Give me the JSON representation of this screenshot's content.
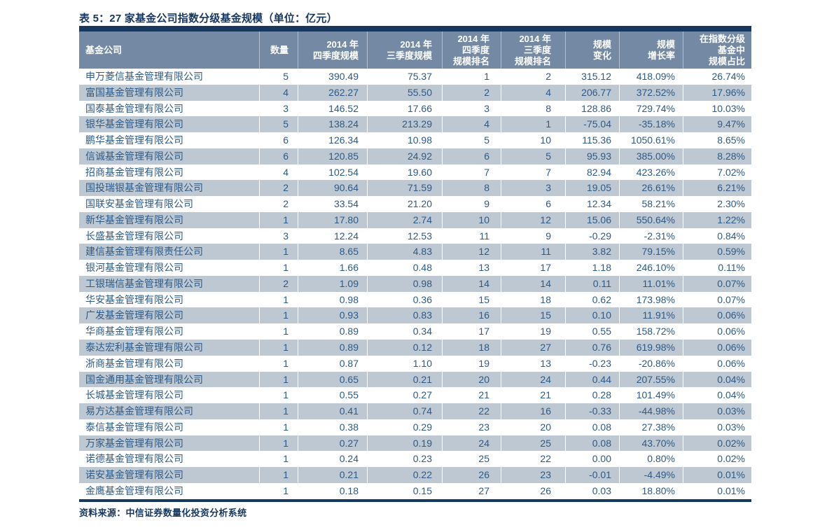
{
  "title": "表 5：27 家基金公司指数分级基金规模（单位：亿元）",
  "source_note": "资料来源：中信证券数量化投资分析系统",
  "colors": {
    "navy": "#17375E",
    "header_bg": "#7389A4",
    "stripe": "#BDC8D3",
    "data_text": "#2D5A87",
    "header_text": "#FFFFFF"
  },
  "table": {
    "columns": [
      {
        "id": "company",
        "align": "left",
        "label_lines": [
          "基金公司"
        ]
      },
      {
        "id": "count",
        "align": "right",
        "label_lines": [
          "数量"
        ]
      },
      {
        "id": "q4_scale",
        "align": "right",
        "label_lines": [
          "2014 年",
          "四季度规模"
        ]
      },
      {
        "id": "q3_scale",
        "align": "right",
        "label_lines": [
          "2014 年",
          "三季度规模"
        ]
      },
      {
        "id": "q4_rank",
        "align": "right",
        "label_lines": [
          "2014 年",
          "四季度",
          "规模排名"
        ]
      },
      {
        "id": "q3_rank",
        "align": "right",
        "label_lines": [
          "2014 年",
          "三季度",
          "规模排名"
        ]
      },
      {
        "id": "scale_change",
        "align": "right",
        "label_lines": [
          "规模",
          "变化"
        ]
      },
      {
        "id": "growth_rate",
        "align": "right",
        "label_lines": [
          "规模",
          "增长率"
        ]
      },
      {
        "id": "share",
        "align": "right",
        "label_lines": [
          "在指数分级",
          "基金中",
          "规模占比"
        ]
      }
    ],
    "rows": [
      [
        "申万菱信基金管理有限公司",
        "5",
        "390.49",
        "75.37",
        "1",
        "2",
        "315.12",
        "418.09%",
        "26.74%"
      ],
      [
        "富国基金管理有限公司",
        "4",
        "262.27",
        "55.50",
        "2",
        "4",
        "206.77",
        "372.52%",
        "17.96%"
      ],
      [
        "国泰基金管理有限公司",
        "3",
        "146.52",
        "17.66",
        "3",
        "8",
        "128.86",
        "729.74%",
        "10.03%"
      ],
      [
        "银华基金管理有限公司",
        "5",
        "138.24",
        "213.29",
        "4",
        "1",
        "-75.04",
        "-35.18%",
        "9.47%"
      ],
      [
        "鹏华基金管理有限公司",
        "6",
        "126.34",
        "10.98",
        "5",
        "10",
        "115.36",
        "1050.61%",
        "8.65%"
      ],
      [
        "信诚基金管理有限公司",
        "6",
        "120.85",
        "24.92",
        "6",
        "5",
        "95.93",
        "385.00%",
        "8.28%"
      ],
      [
        "招商基金管理有限公司",
        "4",
        "102.54",
        "19.60",
        "7",
        "7",
        "82.94",
        "423.26%",
        "7.02%"
      ],
      [
        "国投瑞银基金管理有限公司",
        "2",
        "90.64",
        "71.59",
        "8",
        "3",
        "19.05",
        "26.61%",
        "6.21%"
      ],
      [
        "国联安基金管理有限公司",
        "2",
        "33.54",
        "21.20",
        "9",
        "6",
        "12.34",
        "58.21%",
        "2.30%"
      ],
      [
        "新华基金管理有限公司",
        "1",
        "17.80",
        "2.74",
        "10",
        "12",
        "15.06",
        "550.64%",
        "1.22%"
      ],
      [
        "长盛基金管理有限公司",
        "3",
        "12.24",
        "12.53",
        "11",
        "9",
        "-0.29",
        "-2.31%",
        "0.84%"
      ],
      [
        "建信基金管理有限责任公司",
        "1",
        "8.65",
        "4.83",
        "12",
        "11",
        "3.82",
        "79.15%",
        "0.59%"
      ],
      [
        "银河基金管理有限公司",
        "1",
        "1.66",
        "0.48",
        "13",
        "17",
        "1.18",
        "246.10%",
        "0.11%"
      ],
      [
        "工银瑞信基金管理有限公司",
        "2",
        "1.09",
        "0.98",
        "14",
        "14",
        "0.11",
        "11.01%",
        "0.07%"
      ],
      [
        "华安基金管理有限公司",
        "1",
        "0.98",
        "0.36",
        "15",
        "18",
        "0.62",
        "173.98%",
        "0.07%"
      ],
      [
        "广发基金管理有限公司",
        "1",
        "0.93",
        "0.83",
        "16",
        "15",
        "0.10",
        "11.91%",
        "0.06%"
      ],
      [
        "华商基金管理有限公司",
        "1",
        "0.89",
        "0.34",
        "17",
        "19",
        "0.55",
        "158.72%",
        "0.06%"
      ],
      [
        "泰达宏利基金管理有限公司",
        "1",
        "0.89",
        "0.12",
        "18",
        "27",
        "0.76",
        "619.98%",
        "0.06%"
      ],
      [
        "浙商基金管理有限公司",
        "1",
        "0.87",
        "1.10",
        "19",
        "13",
        "-0.23",
        "-20.86%",
        "0.06%"
      ],
      [
        "国金通用基金管理有限公司",
        "1",
        "0.65",
        "0.21",
        "20",
        "24",
        "0.44",
        "207.55%",
        "0.04%"
      ],
      [
        "长城基金管理有限公司",
        "1",
        "0.55",
        "0.27",
        "21",
        "21",
        "0.28",
        "101.49%",
        "0.04%"
      ],
      [
        "易方达基金管理有限公司",
        "1",
        "0.41",
        "0.74",
        "22",
        "16",
        "-0.33",
        "-44.98%",
        "0.03%"
      ],
      [
        "泰信基金管理有限公司",
        "1",
        "0.38",
        "0.29",
        "23",
        "20",
        "0.08",
        "27.38%",
        "0.03%"
      ],
      [
        "万家基金管理有限公司",
        "1",
        "0.27",
        "0.19",
        "24",
        "25",
        "0.08",
        "43.70%",
        "0.02%"
      ],
      [
        "诺德基金管理有限公司",
        "1",
        "0.24",
        "0.23",
        "25",
        "22",
        "0.00",
        "0.80%",
        "0.02%"
      ],
      [
        "诺安基金管理有限公司",
        "1",
        "0.21",
        "0.22",
        "26",
        "23",
        "-0.01",
        "-4.49%",
        "0.01%"
      ],
      [
        "金鹰基金管理有限公司",
        "1",
        "0.18",
        "0.15",
        "27",
        "26",
        "0.03",
        "18.80%",
        "0.01%"
      ]
    ]
  }
}
